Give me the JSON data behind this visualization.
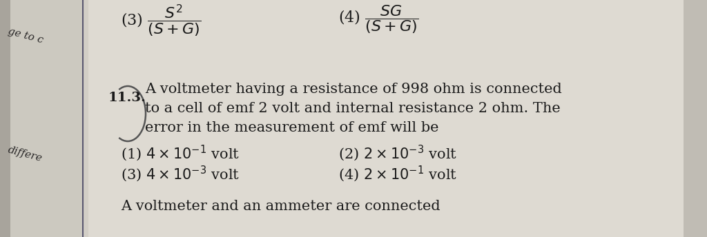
{
  "bg_color": "#d8d4cc",
  "page_color": "#e8e5de",
  "left_page_color": "#c8c4bc",
  "divider_color": "#6a6888",
  "text_color": "#1a1a1a",
  "top_opt3": "(3) $\\dfrac{S^2}{(S+G)}$",
  "top_opt4": "(4) $\\dfrac{SG}{(S+G)}$",
  "q_number": "11.3.",
  "q_line1": "A voltmeter having a resistance of 998 ohm is connected",
  "q_line2": "to a cell of emf 2 volt and internal resistance 2 ohm. The",
  "q_line3": "error in the measurement of emf will be",
  "opt1": "(1) $4 \\times 10^{-1}$ volt",
  "opt2": "(2) $2 \\times 10^{-3}$ volt",
  "opt3": "(3) $4 \\times 10^{-3}$ volt",
  "opt4": "(4) $2 \\times 10^{-1}$ volt",
  "bottom_text": "A voltmeter and an ammeter are connected",
  "left_text1": "ge to c",
  "left_text2": "differe"
}
